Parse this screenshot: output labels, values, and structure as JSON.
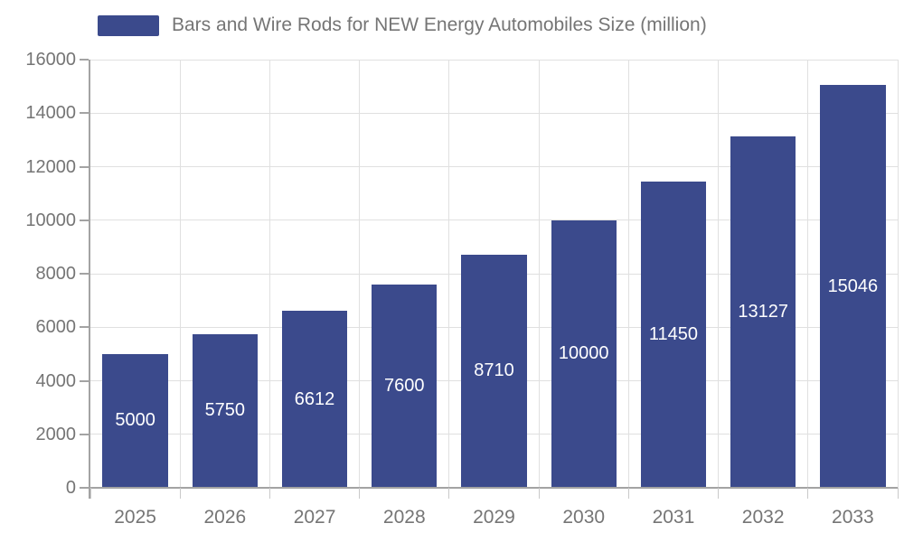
{
  "legend": {
    "label": "Bars and Wire Rods for NEW Energy Automobiles Size (million)"
  },
  "colors": {
    "bar": "#3B4A8C",
    "bar_label_text": "#ffffff",
    "axis_text": "#757575",
    "grid": "#e0e0e0",
    "spine": "#a3a3a3",
    "xtick": "#c9c9c9"
  },
  "chart_data": {
    "type": "bar",
    "title": "Bars and Wire Rods for NEW Energy Automobiles Size (million)",
    "categories": [
      "2025",
      "2026",
      "2027",
      "2028",
      "2029",
      "2030",
      "2031",
      "2032",
      "2033"
    ],
    "values": [
      5000,
      5750,
      6612,
      7600,
      8710,
      10000,
      11450,
      13127,
      15046
    ],
    "xlabel": "",
    "ylabel": "",
    "ylim": [
      0,
      16000
    ],
    "ytick_step": 2000,
    "grid": true,
    "legend_position": "top-left",
    "bar_labels": "inside-center-white"
  }
}
